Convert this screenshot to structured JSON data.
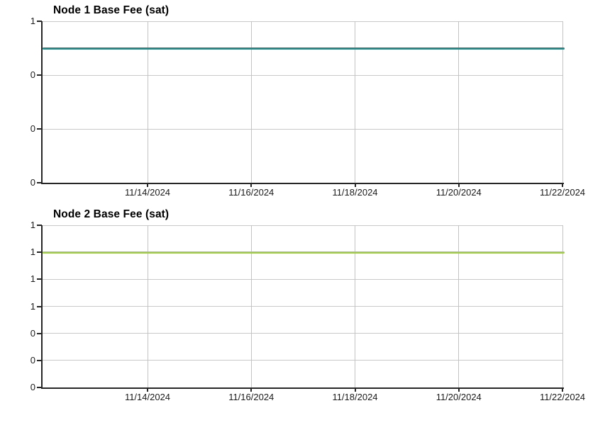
{
  "page": {
    "background": "#ffffff"
  },
  "chart_data": [
    {
      "type": "line",
      "title": "Node 1 Base Fee (sat)",
      "xlabel": "",
      "ylabel": "",
      "x_tick_labels": [
        "11/14/2024",
        "11/16/2024",
        "11/18/2024",
        "11/20/2024",
        "11/22/2024"
      ],
      "y_tick_labels": [
        "1",
        "0",
        "0",
        "0"
      ],
      "y_axis_min": 0,
      "y_axis_max": 1.2,
      "grid": true,
      "legend": false,
      "series": [
        {
          "name": "Node 1 base fee",
          "unit": "sat",
          "value_constant": 1,
          "color": "#15908f"
        }
      ]
    },
    {
      "type": "line",
      "title": "Node 2 Base Fee (sat)",
      "xlabel": "",
      "ylabel": "",
      "x_tick_labels": [
        "11/14/2024",
        "11/16/2024",
        "11/18/2024",
        "11/20/2024",
        "11/22/2024"
      ],
      "y_tick_labels": [
        "1",
        "1",
        "1",
        "1",
        "0",
        "0",
        "0"
      ],
      "y_axis_min": 0,
      "y_axis_max": 1.2,
      "grid": true,
      "legend": false,
      "series": [
        {
          "name": "Node 2 base fee",
          "unit": "sat",
          "value_constant": 1,
          "color": "#9fd335"
        }
      ]
    }
  ]
}
